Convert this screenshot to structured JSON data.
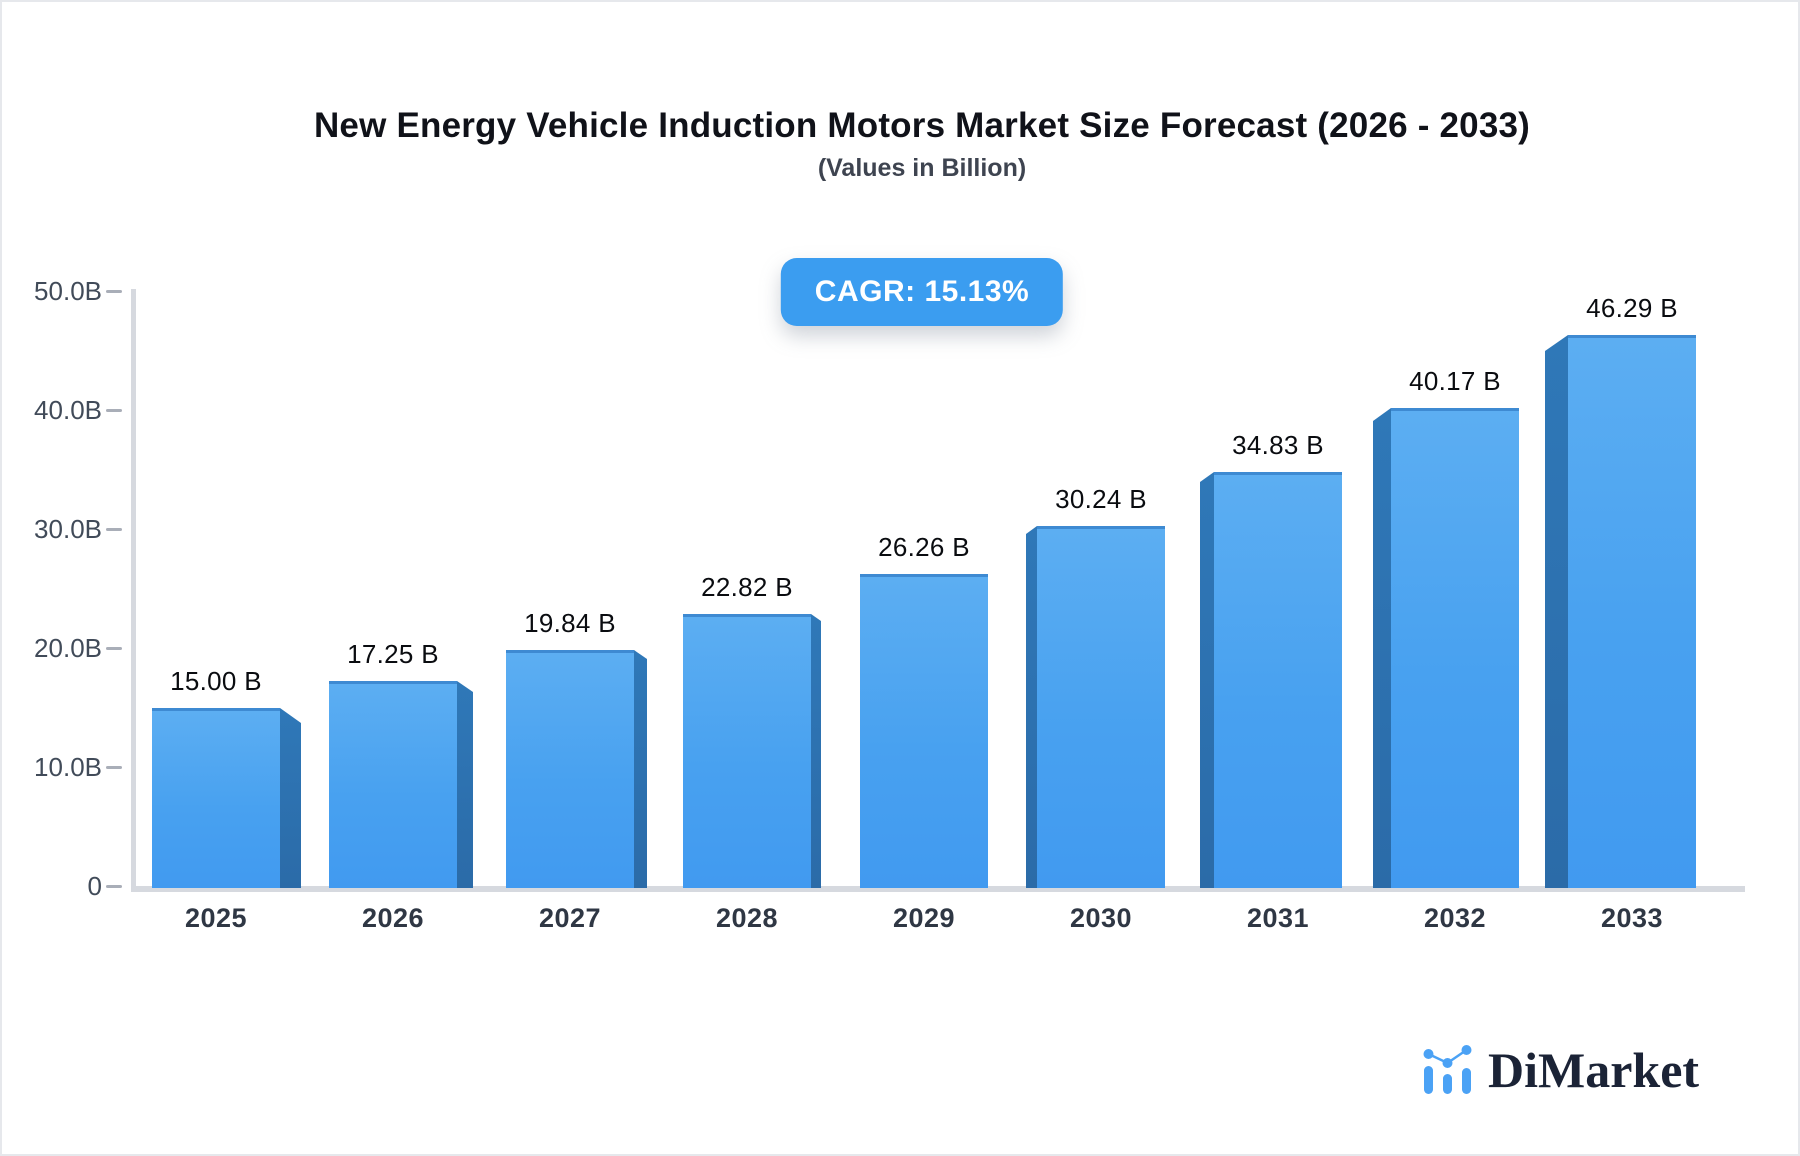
{
  "header": {
    "title": "New Energy Vehicle Induction Motors Market Size Forecast (2026 - 2033)",
    "subtitle": "(Values in Billion)",
    "badge": "CAGR: 15.13%"
  },
  "chart_data": {
    "type": "bar",
    "title": "New Energy Vehicle Induction Motors Market Size Forecast (2026 - 2033)",
    "subtitle": "(Values in Billion)",
    "annotation": "CAGR: 15.13%",
    "categories": [
      "2025",
      "2026",
      "2027",
      "2028",
      "2029",
      "2030",
      "2031",
      "2032",
      "2033"
    ],
    "values": [
      15.0,
      17.25,
      19.84,
      22.82,
      26.26,
      30.24,
      34.83,
      40.17,
      46.29
    ],
    "value_labels": [
      "15.00 B",
      "17.25 B",
      "19.84 B",
      "22.82 B",
      "26.26 B",
      "30.24 B",
      "34.83 B",
      "40.17 B",
      "46.29 B"
    ],
    "unit": "Billion",
    "xlabel": "",
    "ylabel": "",
    "ylim": [
      0,
      50
    ],
    "y_tick_values": [
      0,
      10,
      20,
      30,
      40,
      50
    ],
    "y_tick_labels": [
      "0",
      "10.0B",
      "20.0B",
      "30.0B",
      "40.0B",
      "50.0B"
    ],
    "grid": false,
    "legend": false,
    "bar_style": "3d-perspective",
    "colors": {
      "bar_face_top": "#5caef2",
      "bar_face_bottom": "#419af0",
      "bar_face_edge": "#3e8ad2",
      "bar_side": "#2e73b2",
      "axis": "#d6d9df",
      "tick_dash": "#a9aeb8",
      "y_label": "#414b59",
      "x_label": "#2f3744",
      "value_label": "#0a0c10",
      "badge_bg": "#3b9df0",
      "badge_text": "#ffffff"
    }
  },
  "brand": {
    "name": "DiMarket",
    "icon": "bar-chart-trend-icon",
    "icon_color": "#4ba2f5",
    "text_color": "#1b2336"
  }
}
